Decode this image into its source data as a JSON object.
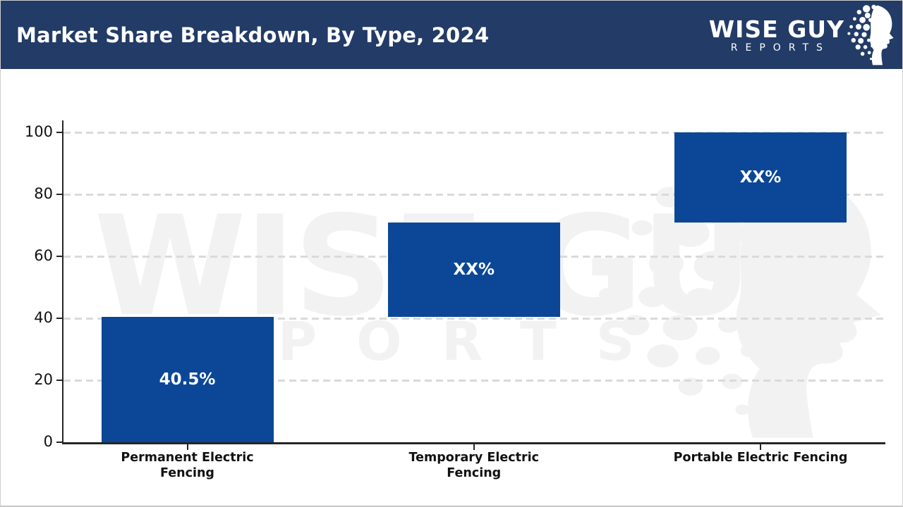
{
  "page": {
    "background": "#ffffff",
    "border_color": "#cfcfcf"
  },
  "header": {
    "title": "Market Share Breakdown, By Type, 2024",
    "background": "#223b67",
    "text_color": "#ffffff"
  },
  "logo": {
    "wordmark": "WISE GUY",
    "sub": "REPORTS",
    "head_icon": "dotted-face-profile-icon",
    "color": "#ffffff"
  },
  "watermark": {
    "wordmark": "WISE GUY",
    "sub": "REPORTS",
    "head_icon": "dotted-face-profile-icon",
    "color": "#f2f2f2"
  },
  "chart_data": {
    "type": "bar",
    "subtype": "floating-waterfall",
    "title": "Market Share Breakdown, By Type, 2024",
    "categories": [
      "Permanent Electric Fencing",
      "Temporary Electric Fencing",
      "Portable Electric Fencing"
    ],
    "series": [
      {
        "name": "Market Share (%)",
        "segments": [
          {
            "category": "Permanent Electric Fencing",
            "start": 0,
            "end": 40.5,
            "label": "40.5%"
          },
          {
            "category": "Temporary Electric Fencing",
            "start": 40.5,
            "end": 71,
            "label": "XX%"
          },
          {
            "category": "Portable Electric Fencing",
            "start": 71,
            "end": 100,
            "label": "XX%"
          }
        ]
      }
    ],
    "xlabel": "",
    "ylabel": "",
    "ylim": [
      0,
      100
    ],
    "yticks": [
      0,
      20,
      40,
      60,
      80,
      100
    ],
    "grid": "horizontal-dashed",
    "grid_color": "#dadada",
    "bar_color": "#0b4796",
    "bar_label_color": "#ffffff",
    "axis_color": "#262626",
    "legend": "none"
  }
}
